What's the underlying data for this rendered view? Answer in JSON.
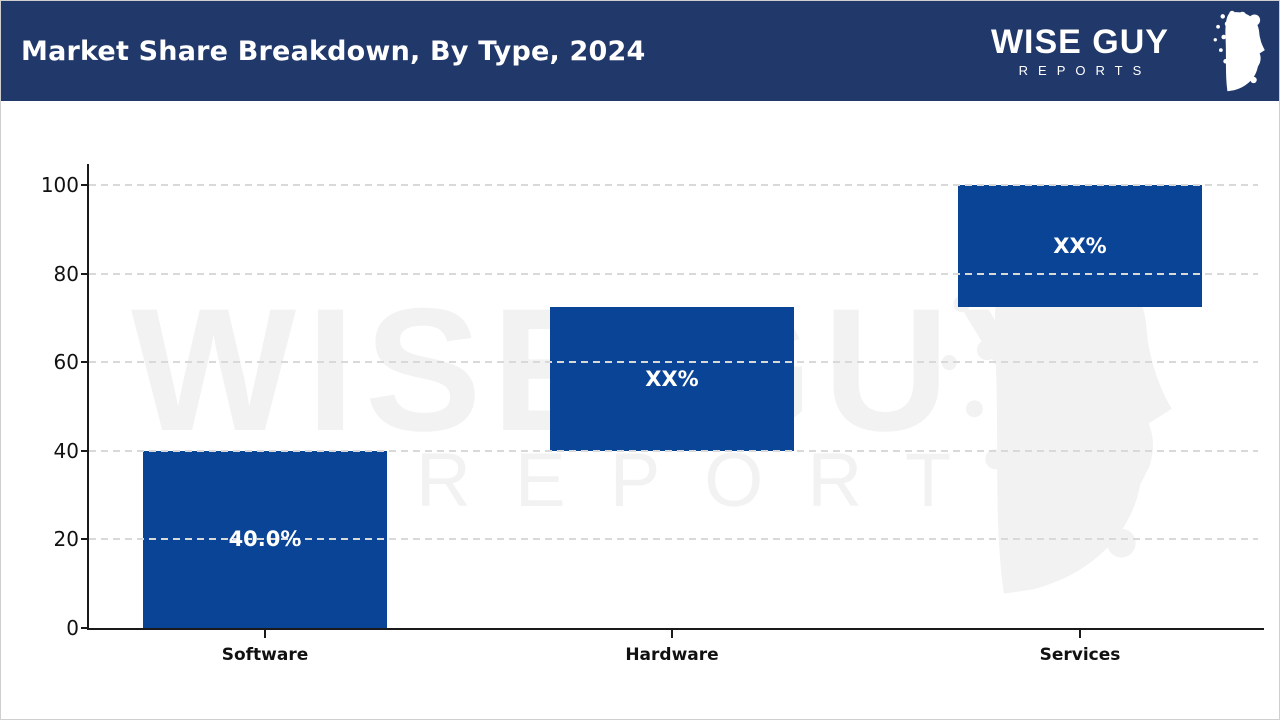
{
  "header": {
    "title": "Market Share Breakdown, By Type, 2024",
    "background_color": "#21386b",
    "logo": {
      "line1": "WISE GUY",
      "line2": "REPORTS"
    }
  },
  "watermark": {
    "line1": "WISE GUY",
    "line2": "REPORTS"
  },
  "chart_data": {
    "type": "bar",
    "subtype": "floating-waterfall",
    "title": "Market Share Breakdown, By Type, 2024",
    "categories": [
      "Software",
      "Hardware",
      "Services"
    ],
    "segments": [
      {
        "category": "Software",
        "start": 0,
        "end": 40,
        "label": "40.0%"
      },
      {
        "category": "Hardware",
        "start": 40,
        "end": 72.5,
        "label": "XX%"
      },
      {
        "category": "Services",
        "start": 72.5,
        "end": 100,
        "label": "XX%"
      }
    ],
    "xlabel": "",
    "ylabel": "",
    "yticks": [
      0,
      20,
      40,
      60,
      80,
      100
    ],
    "ylim": [
      0,
      105
    ],
    "grid": "horizontal-dashed",
    "legend": "none",
    "colors": {
      "bar": "#0a4496",
      "grid": "#d9d9d9",
      "axis": "#1a1a1a",
      "bar_label": "#ffffff",
      "header": "#21386b",
      "watermark": "#f2f2f2"
    }
  }
}
